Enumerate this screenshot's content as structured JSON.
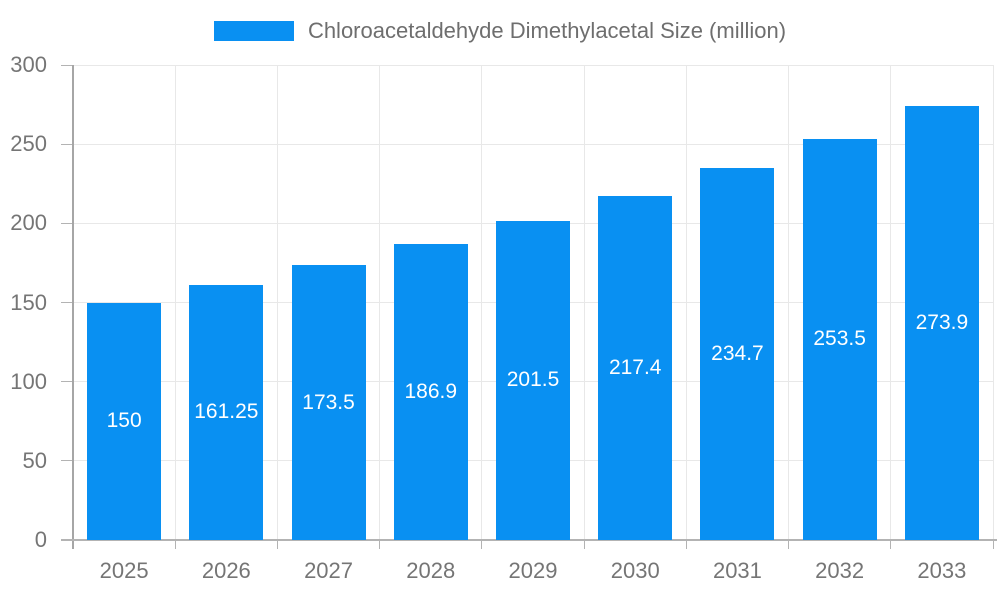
{
  "legend": {
    "label": "Chloroacetaldehyde Dimethylacetal Size (million)"
  },
  "chart_data": {
    "type": "bar",
    "title": "Chloroacetaldehyde Dimethylacetal Size (million)",
    "categories": [
      "2025",
      "2026",
      "2027",
      "2028",
      "2029",
      "2030",
      "2031",
      "2032",
      "2033"
    ],
    "values": [
      150,
      161.25,
      173.5,
      186.9,
      201.5,
      217.4,
      234.7,
      253.5,
      273.9
    ],
    "xlabel": "",
    "ylabel": "",
    "ylim": [
      0,
      300
    ],
    "y_ticks": [
      0,
      50,
      100,
      150,
      200,
      250,
      300
    ],
    "grid": true,
    "legend_position": "top-center",
    "value_label_position": "inside-center",
    "colors": {
      "bar": "#0990f2",
      "value_label_text": "#ffffff",
      "axis_text": "#757575",
      "legend_text": "#6e6e6e",
      "gridline": "#e8e8e8",
      "axis_line": "#b3b3b3",
      "background": "#ffffff"
    }
  }
}
